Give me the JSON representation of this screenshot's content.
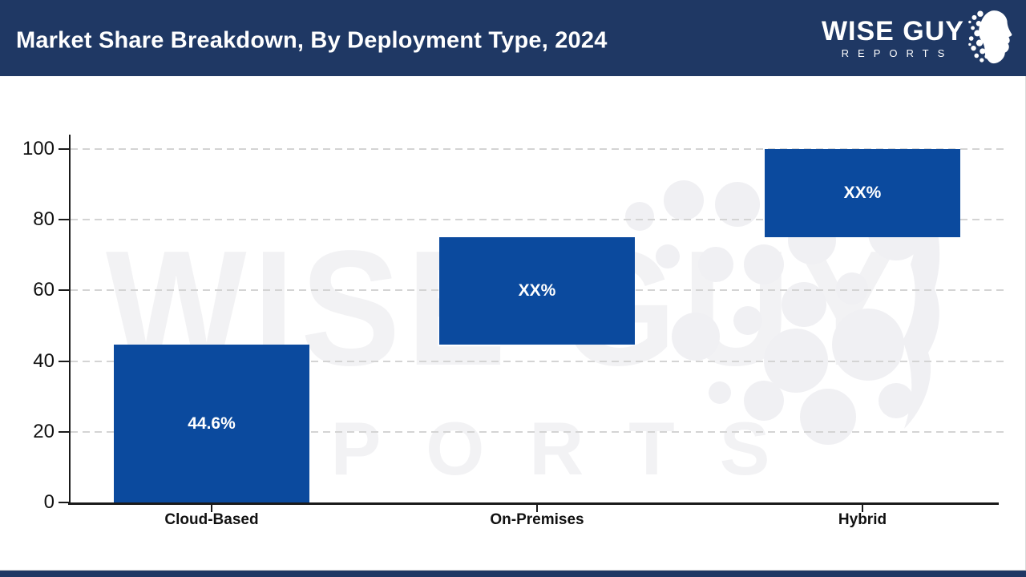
{
  "header": {
    "title": "Market Share Breakdown, By Deployment Type, 2024",
    "logo": {
      "line1": "WISE GUY",
      "line2": "REPORTS"
    },
    "bg_color": "#1f3864",
    "text_color": "#ffffff"
  },
  "watermark": {
    "line1": "WISE GUY",
    "line2": "REPORTS"
  },
  "chart_data": {
    "type": "bar",
    "subtype": "floating-waterfall",
    "title": "Market Share Breakdown, By Deployment Type, 2024",
    "categories": [
      "Cloud-Based",
      "On-Premises",
      "Hybrid"
    ],
    "segments": [
      {
        "category": "Cloud-Based",
        "start": 0,
        "end": 44.6,
        "label": "44.6%"
      },
      {
        "category": "On-Premises",
        "start": 44.6,
        "end": 75,
        "label": "XX%"
      },
      {
        "category": "Hybrid",
        "start": 75,
        "end": 100,
        "label": "XX%"
      }
    ],
    "xlabel": "",
    "ylabel": "",
    "ylim": [
      0,
      100
    ],
    "yticks": [
      0,
      20,
      40,
      60,
      80,
      100
    ],
    "grid": "dashed horizontal gridlines at y ticks",
    "legend": "none",
    "bar_color": "#0b4a9e",
    "bar_label_color": "#ffffff",
    "axis_color": "#1a1a1a",
    "gridline_color": "#d4d4d4"
  },
  "footer": {
    "bar_color": "#1f3864"
  }
}
